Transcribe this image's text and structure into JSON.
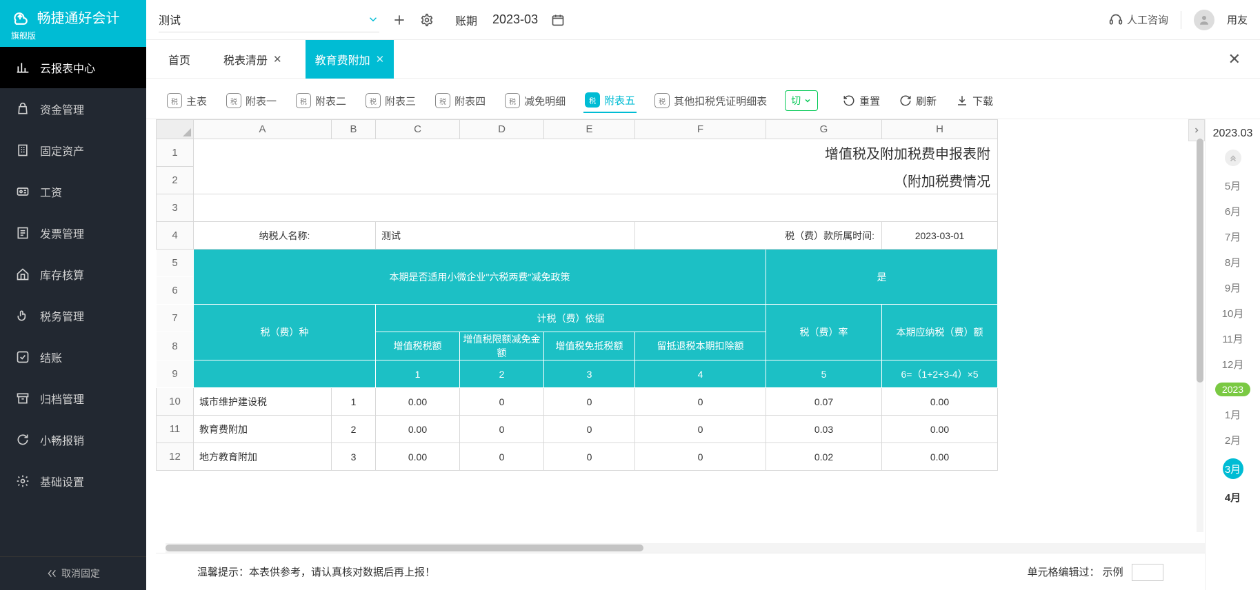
{
  "brand": {
    "name": "畅捷通好会计",
    "edition": "旗舰版"
  },
  "sidebar": {
    "items": [
      {
        "label": "云报表中心",
        "icon": "chart"
      },
      {
        "label": "资金管理",
        "icon": "bag"
      },
      {
        "label": "固定资产",
        "icon": "building"
      },
      {
        "label": "工资",
        "icon": "card"
      },
      {
        "label": "发票管理",
        "icon": "receipt"
      },
      {
        "label": "库存核算",
        "icon": "home"
      },
      {
        "label": "税务管理",
        "icon": "hand"
      },
      {
        "label": "结账",
        "icon": "check"
      },
      {
        "label": "归档管理",
        "icon": "archive"
      },
      {
        "label": "小畅报销",
        "icon": "refresh"
      },
      {
        "label": "基础设置",
        "icon": "gear"
      }
    ],
    "footer": "取消固定"
  },
  "topbar": {
    "company": "测试",
    "period_label": "账期",
    "period_value": "2023-03",
    "consult": "人工咨询",
    "username": "用友"
  },
  "tabs": {
    "items": [
      {
        "label": "首页",
        "closable": false
      },
      {
        "label": "税表清册",
        "closable": true
      },
      {
        "label": "教育费附加",
        "closable": true,
        "active": true
      }
    ]
  },
  "subtabs": {
    "items": [
      {
        "label": "主表"
      },
      {
        "label": "附表一"
      },
      {
        "label": "附表二"
      },
      {
        "label": "附表三"
      },
      {
        "label": "附表四"
      },
      {
        "label": "减免明细"
      },
      {
        "label": "附表五",
        "active": true
      },
      {
        "label": "其他扣税凭证明细表"
      }
    ],
    "switch": "切",
    "actions": {
      "reset": "重置",
      "refresh": "刷新",
      "download": "下载"
    }
  },
  "sheet": {
    "columns": [
      "A",
      "B",
      "C",
      "D",
      "E",
      "F",
      "G",
      "H"
    ],
    "title1": "增值税及附加税费申报表附",
    "title2": "（附加税费情况",
    "taxpayer_label": "纳税人名称:",
    "taxpayer_value": "测试",
    "period_owner_label": "税（费）款所属时间:",
    "period_owner_value": "2023-03-01",
    "policy_q": "本期是否适用小微企业\"六税两费\"减免政策",
    "policy_a": "是",
    "hdr_taxtype": "税（费）种",
    "hdr_basis": "计税（费）依据",
    "hdr_rate": "税（费）率",
    "hdr_payable": "本期应纳税（费）额",
    "sub_c": "增值税税额",
    "sub_d": "增值税限额减免金额",
    "sub_e": "增值税免抵税额",
    "sub_f": "留抵退税本期扣除额",
    "idx": {
      "c": "1",
      "d": "2",
      "e": "3",
      "f": "4",
      "g": "5",
      "h": "6=（1+2+3-4）×5"
    },
    "rows": [
      {
        "n": "10",
        "name": "城市维护建设税",
        "b": "1",
        "c": "0.00",
        "d": "0",
        "e": "0",
        "f": "0",
        "g": "0.07",
        "h": "0.00"
      },
      {
        "n": "11",
        "name": "教育费附加",
        "b": "2",
        "c": "0.00",
        "d": "0",
        "e": "0",
        "f": "0",
        "g": "0.03",
        "h": "0.00"
      },
      {
        "n": "12",
        "name": "地方教育附加",
        "b": "3",
        "c": "0.00",
        "d": "0",
        "e": "0",
        "f": "0",
        "g": "0.02",
        "h": "0.00"
      }
    ],
    "row_nums_blank": [
      "1",
      "2",
      "3",
      "4",
      "5",
      "6",
      "7",
      "8",
      "9"
    ]
  },
  "footer": {
    "tip": "温馨提示：本表供参考，请认真核对数据后再上报！",
    "edited_label": "单元格编辑过：",
    "example": "示例"
  },
  "rail": {
    "header": "2023.03",
    "months_pre": [
      "5月",
      "6月",
      "7月",
      "8月",
      "9月",
      "10月",
      "11月",
      "12月"
    ],
    "year_pill": "2023",
    "months_post": [
      {
        "label": "1月"
      },
      {
        "label": "2月"
      },
      {
        "label": "3月",
        "active": true
      },
      {
        "label": "4月",
        "bold": true
      }
    ]
  },
  "colors": {
    "brand": "#00bcd4",
    "sidebar_bg": "#222831",
    "teal_header": "#1cc0c5",
    "year_pill": "#7ac943"
  }
}
